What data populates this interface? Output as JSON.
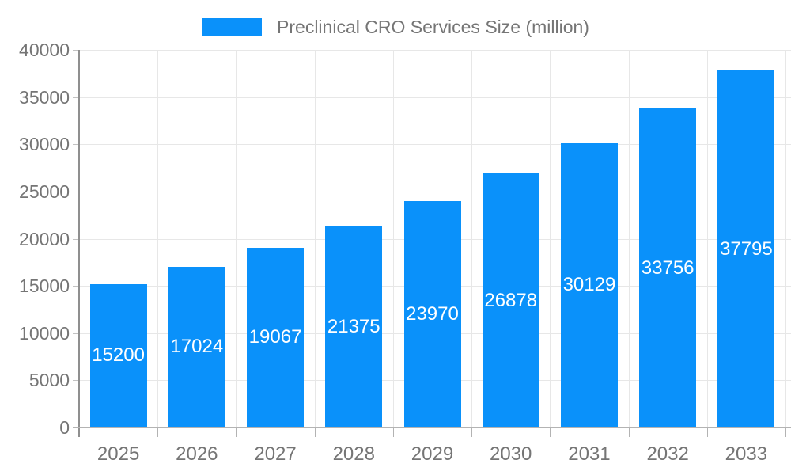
{
  "chart_data": {
    "type": "bar",
    "title": "Preclinical CRO Services Size (million)",
    "legend_entries": [
      "Preclinical CRO Services Size (million)"
    ],
    "legend_position": "top-center",
    "categories": [
      "2025",
      "2026",
      "2027",
      "2028",
      "2029",
      "2030",
      "2031",
      "2032",
      "2033"
    ],
    "values": [
      15200,
      17024,
      19067,
      21375,
      23970,
      26878,
      30129,
      33756,
      37795
    ],
    "xlabel": "",
    "ylabel": "",
    "ylim": [
      0,
      40000
    ],
    "yticks": [
      0,
      5000,
      10000,
      15000,
      20000,
      25000,
      30000,
      35000,
      40000
    ],
    "grid": true,
    "value_labels": "inside-center",
    "colors": {
      "bar": "#0a91fa",
      "value_label": "#ffffff",
      "axis_text": "#757575",
      "gridline": "#e7e7e7",
      "y_axis_line": "#8f8f8f",
      "x_axis_line": "#b3b3b3",
      "background": "#ffffff"
    }
  }
}
